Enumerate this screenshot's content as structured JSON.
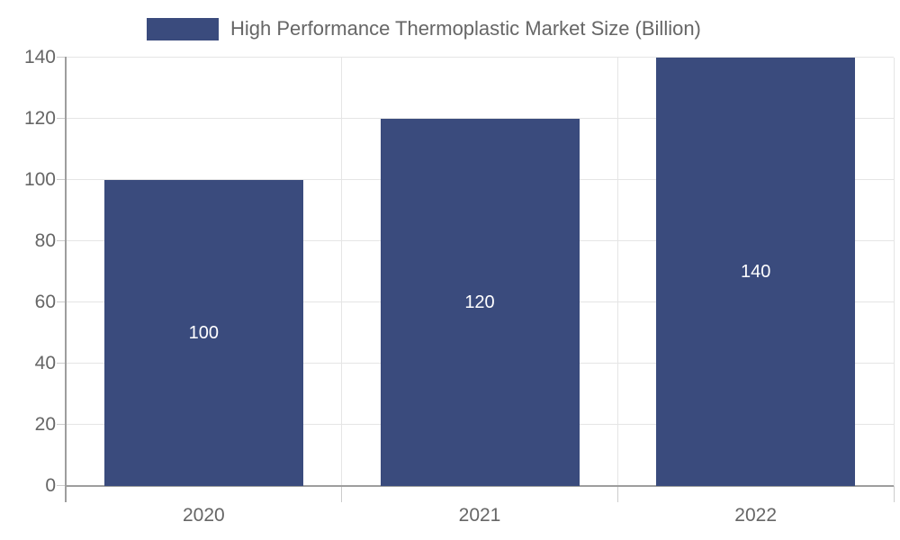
{
  "chart_data": {
    "type": "bar",
    "title": "High Performance Thermoplastic Market Size (Billion)",
    "categories": [
      "2020",
      "2021",
      "2022"
    ],
    "values": [
      100,
      120,
      140
    ],
    "bar_labels": [
      "100",
      "120",
      "140"
    ],
    "xlabel": "",
    "ylabel": "",
    "ylim": [
      0,
      140
    ],
    "yticks": [
      0,
      20,
      40,
      60,
      80,
      100,
      120,
      140
    ],
    "grid": "on",
    "legend_position": "top-left",
    "legend_entries": [
      "High Performance Thermoplastic Market Size (Billion)"
    ],
    "colors": {
      "bar": "#3A4B7D",
      "axis": "#9e9e9e",
      "tick": "#cccccc",
      "grid": "#e5e5e5",
      "tick_label": "#666666",
      "legend_text": "#666666",
      "bar_label": "#ffffff",
      "background": "#ffffff"
    }
  }
}
